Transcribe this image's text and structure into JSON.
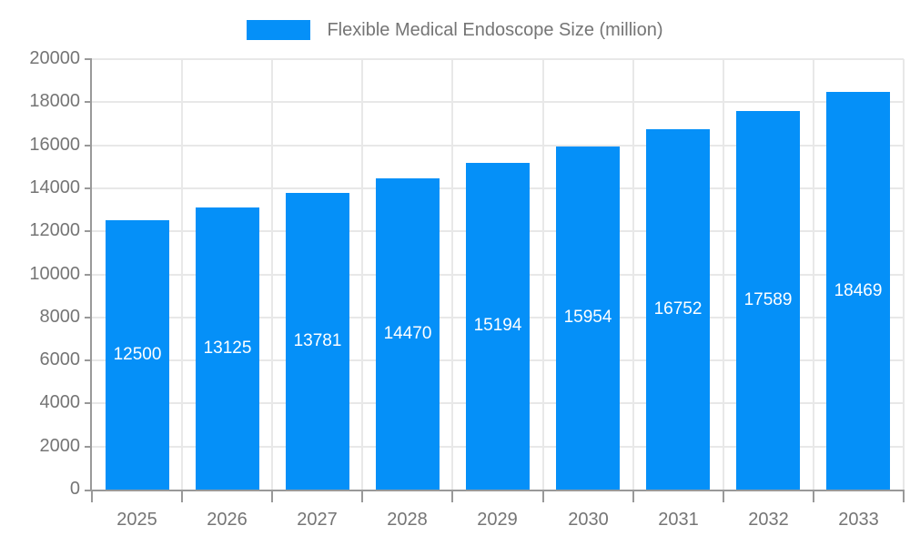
{
  "legend": {
    "label": "Flexible Medical Endoscope Size (million)"
  },
  "chart_data": {
    "type": "bar",
    "title": "Flexible Medical Endoscope Size (million)",
    "categories": [
      "2025",
      "2026",
      "2027",
      "2028",
      "2029",
      "2030",
      "2031",
      "2032",
      "2033"
    ],
    "values": [
      12500,
      13125,
      13781,
      14470,
      15194,
      15954,
      16752,
      17589,
      18469
    ],
    "xlabel": "",
    "ylabel": "",
    "ylim": [
      0,
      20000
    ],
    "ytick_step": 2000,
    "grid": true,
    "legend_position": "top",
    "bar_color": "#0590f8",
    "value_label_color": "#ffffff",
    "axis_text_color": "#757575",
    "grid_color": "#e8e8e8",
    "axis_line_color": "#999999",
    "background_color": "#ffffff"
  }
}
